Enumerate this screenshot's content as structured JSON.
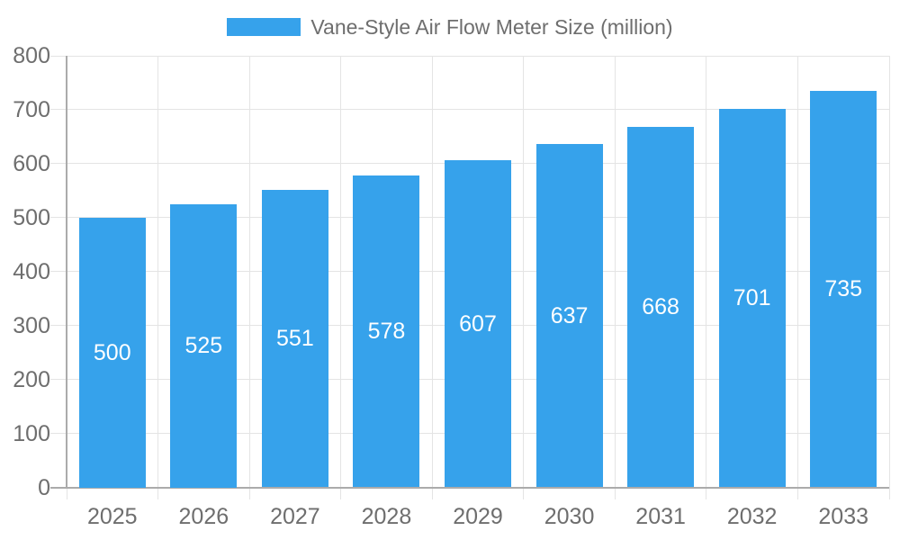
{
  "chart_data": {
    "type": "bar",
    "title": "Vane-Style Air Flow Meter Size (million)",
    "categories": [
      "2025",
      "2026",
      "2027",
      "2028",
      "2029",
      "2030",
      "2031",
      "2032",
      "2033"
    ],
    "values": [
      500,
      525,
      551,
      578,
      607,
      637,
      668,
      701,
      735
    ],
    "yticks": [
      0,
      100,
      200,
      300,
      400,
      500,
      600,
      700,
      800
    ],
    "ylim": [
      0,
      800
    ],
    "grid": true,
    "legend_position": "top",
    "colors": {
      "bar": "#36A2EB",
      "value_label": "#ffffff",
      "grid": "#e4e4e4",
      "axis": "#ababab",
      "text": "#6e6e6e"
    }
  }
}
